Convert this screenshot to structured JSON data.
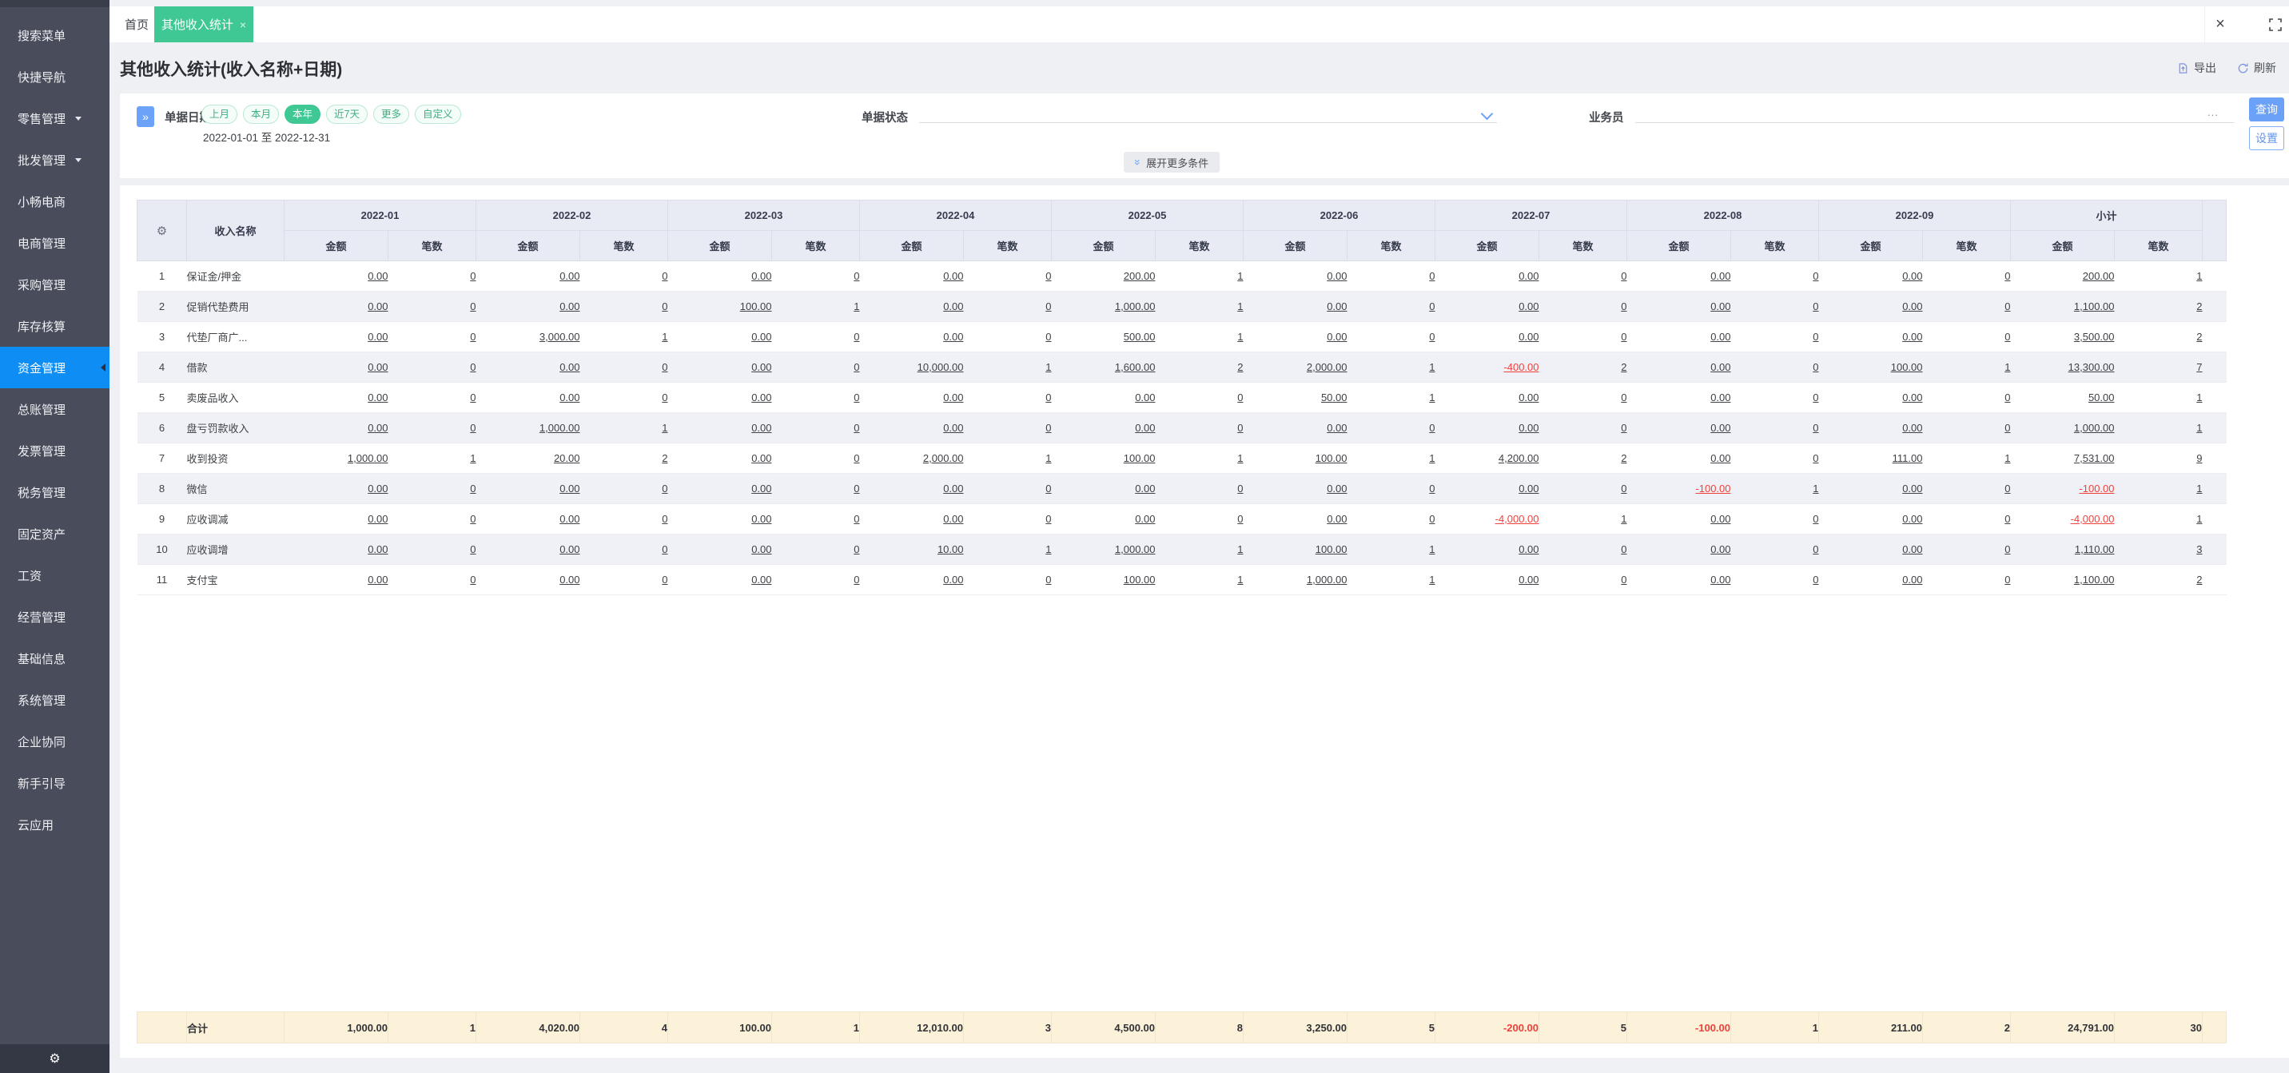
{
  "sidebar": {
    "items": [
      {
        "label": "搜索菜单"
      },
      {
        "label": "快捷导航"
      },
      {
        "label": "零售管理",
        "caret": true
      },
      {
        "label": "批发管理",
        "caret": true
      },
      {
        "label": "小畅电商"
      },
      {
        "label": "电商管理"
      },
      {
        "label": "采购管理"
      },
      {
        "label": "库存核算"
      },
      {
        "label": "资金管理",
        "active": true
      },
      {
        "label": "总账管理"
      },
      {
        "label": "发票管理"
      },
      {
        "label": "税务管理"
      },
      {
        "label": "固定资产"
      },
      {
        "label": "工资"
      },
      {
        "label": "经营管理"
      },
      {
        "label": "基础信息"
      },
      {
        "label": "系统管理"
      },
      {
        "label": "企业协同"
      },
      {
        "label": "新手引导"
      },
      {
        "label": "云应用"
      }
    ],
    "footer_icon": "⚙"
  },
  "tabs": {
    "home": "首页",
    "active": "其他收入统计",
    "close": "×"
  },
  "topbar": {
    "close": "×"
  },
  "header": {
    "title": "其他收入统计(收入名称+日期)",
    "export_label": "导出",
    "refresh_label": "刷新"
  },
  "filters": {
    "expand_side_glyph": "»",
    "date_label": "单据日期",
    "date_pills": [
      "上月",
      "本月",
      "本年",
      "近7天",
      "更多",
      "自定义"
    ],
    "active_pill": "本年",
    "date_range": "2022-01-01 至 2022-12-31",
    "status_label": "单据状态",
    "salesman_label": "业务员",
    "ellipsis": "...",
    "query_label": "查询",
    "settings_label": "设置",
    "expand_more_label": "展开更多条件",
    "expand_more_glyph": "»"
  },
  "table": {
    "gear_icon": "⚙",
    "name_header": "收入名称",
    "amount_header": "金额",
    "count_header": "笔数",
    "months": [
      "2022-01",
      "2022-02",
      "2022-03",
      "2022-04",
      "2022-05",
      "2022-06",
      "2022-07",
      "2022-08",
      "2022-09",
      "小计"
    ],
    "rows": [
      {
        "index": "1",
        "name": "保证金/押金",
        "cells": [
          [
            "0.00",
            "0"
          ],
          [
            "0.00",
            "0"
          ],
          [
            "0.00",
            "0"
          ],
          [
            "0.00",
            "0"
          ],
          [
            "200.00",
            "1"
          ],
          [
            "0.00",
            "0"
          ],
          [
            "0.00",
            "0"
          ],
          [
            "0.00",
            "0"
          ],
          [
            "0.00",
            "0"
          ],
          [
            "200.00",
            "1"
          ]
        ]
      },
      {
        "index": "2",
        "name": "促销代垫费用",
        "cells": [
          [
            "0.00",
            "0"
          ],
          [
            "0.00",
            "0"
          ],
          [
            "100.00",
            "1"
          ],
          [
            "0.00",
            "0"
          ],
          [
            "1,000.00",
            "1"
          ],
          [
            "0.00",
            "0"
          ],
          [
            "0.00",
            "0"
          ],
          [
            "0.00",
            "0"
          ],
          [
            "0.00",
            "0"
          ],
          [
            "1,100.00",
            "2"
          ]
        ]
      },
      {
        "index": "3",
        "name": "代垫厂商广...",
        "cells": [
          [
            "0.00",
            "0"
          ],
          [
            "3,000.00",
            "1"
          ],
          [
            "0.00",
            "0"
          ],
          [
            "0.00",
            "0"
          ],
          [
            "500.00",
            "1"
          ],
          [
            "0.00",
            "0"
          ],
          [
            "0.00",
            "0"
          ],
          [
            "0.00",
            "0"
          ],
          [
            "0.00",
            "0"
          ],
          [
            "3,500.00",
            "2"
          ]
        ]
      },
      {
        "index": "4",
        "name": "借款",
        "cells": [
          [
            "0.00",
            "0"
          ],
          [
            "0.00",
            "0"
          ],
          [
            "0.00",
            "0"
          ],
          [
            "10,000.00",
            "1"
          ],
          [
            "1,600.00",
            "2"
          ],
          [
            "2,000.00",
            "1"
          ],
          [
            "-400.00",
            "2"
          ],
          [
            "0.00",
            "0"
          ],
          [
            "100.00",
            "1"
          ],
          [
            "13,300.00",
            "7"
          ]
        ]
      },
      {
        "index": "5",
        "name": "卖废品收入",
        "cells": [
          [
            "0.00",
            "0"
          ],
          [
            "0.00",
            "0"
          ],
          [
            "0.00",
            "0"
          ],
          [
            "0.00",
            "0"
          ],
          [
            "0.00",
            "0"
          ],
          [
            "50.00",
            "1"
          ],
          [
            "0.00",
            "0"
          ],
          [
            "0.00",
            "0"
          ],
          [
            "0.00",
            "0"
          ],
          [
            "50.00",
            "1"
          ]
        ]
      },
      {
        "index": "6",
        "name": "盘亏罚款收入",
        "cells": [
          [
            "0.00",
            "0"
          ],
          [
            "1,000.00",
            "1"
          ],
          [
            "0.00",
            "0"
          ],
          [
            "0.00",
            "0"
          ],
          [
            "0.00",
            "0"
          ],
          [
            "0.00",
            "0"
          ],
          [
            "0.00",
            "0"
          ],
          [
            "0.00",
            "0"
          ],
          [
            "0.00",
            "0"
          ],
          [
            "1,000.00",
            "1"
          ]
        ]
      },
      {
        "index": "7",
        "name": "收到投资",
        "cells": [
          [
            "1,000.00",
            "1"
          ],
          [
            "20.00",
            "2"
          ],
          [
            "0.00",
            "0"
          ],
          [
            "2,000.00",
            "1"
          ],
          [
            "100.00",
            "1"
          ],
          [
            "100.00",
            "1"
          ],
          [
            "4,200.00",
            "2"
          ],
          [
            "0.00",
            "0"
          ],
          [
            "111.00",
            "1"
          ],
          [
            "7,531.00",
            "9"
          ]
        ]
      },
      {
        "index": "8",
        "name": "微信",
        "cells": [
          [
            "0.00",
            "0"
          ],
          [
            "0.00",
            "0"
          ],
          [
            "0.00",
            "0"
          ],
          [
            "0.00",
            "0"
          ],
          [
            "0.00",
            "0"
          ],
          [
            "0.00",
            "0"
          ],
          [
            "0.00",
            "0"
          ],
          [
            "-100.00",
            "1"
          ],
          [
            "0.00",
            "0"
          ],
          [
            "-100.00",
            "1"
          ]
        ]
      },
      {
        "index": "9",
        "name": "应收调减",
        "cells": [
          [
            "0.00",
            "0"
          ],
          [
            "0.00",
            "0"
          ],
          [
            "0.00",
            "0"
          ],
          [
            "0.00",
            "0"
          ],
          [
            "0.00",
            "0"
          ],
          [
            "0.00",
            "0"
          ],
          [
            "-4,000.00",
            "1"
          ],
          [
            "0.00",
            "0"
          ],
          [
            "0.00",
            "0"
          ],
          [
            "-4,000.00",
            "1"
          ]
        ]
      },
      {
        "index": "10",
        "name": "应收调增",
        "cells": [
          [
            "0.00",
            "0"
          ],
          [
            "0.00",
            "0"
          ],
          [
            "0.00",
            "0"
          ],
          [
            "10.00",
            "1"
          ],
          [
            "1,000.00",
            "1"
          ],
          [
            "100.00",
            "1"
          ],
          [
            "0.00",
            "0"
          ],
          [
            "0.00",
            "0"
          ],
          [
            "0.00",
            "0"
          ],
          [
            "1,110.00",
            "3"
          ]
        ]
      },
      {
        "index": "11",
        "name": "支付宝",
        "cells": [
          [
            "0.00",
            "0"
          ],
          [
            "0.00",
            "0"
          ],
          [
            "0.00",
            "0"
          ],
          [
            "0.00",
            "0"
          ],
          [
            "100.00",
            "1"
          ],
          [
            "1,000.00",
            "1"
          ],
          [
            "0.00",
            "0"
          ],
          [
            "0.00",
            "0"
          ],
          [
            "0.00",
            "0"
          ],
          [
            "1,100.00",
            "2"
          ]
        ]
      }
    ],
    "total_label": "合计",
    "totals": [
      [
        "1,000.00",
        "1"
      ],
      [
        "4,020.00",
        "4"
      ],
      [
        "100.00",
        "1"
      ],
      [
        "12,010.00",
        "3"
      ],
      [
        "4,500.00",
        "8"
      ],
      [
        "3,250.00",
        "5"
      ],
      [
        "-200.00",
        "5"
      ],
      [
        "-100.00",
        "1"
      ],
      [
        "211.00",
        "2"
      ],
      [
        "24,791.00",
        "30"
      ]
    ]
  },
  "colors": {
    "accent_green": "#3fc794",
    "accent_blue": "#6ba1f7",
    "sidebar_active_blue": "#0e8ef5",
    "negative_red": "#f0403c",
    "totals_beige": "#fcf1d9"
  }
}
